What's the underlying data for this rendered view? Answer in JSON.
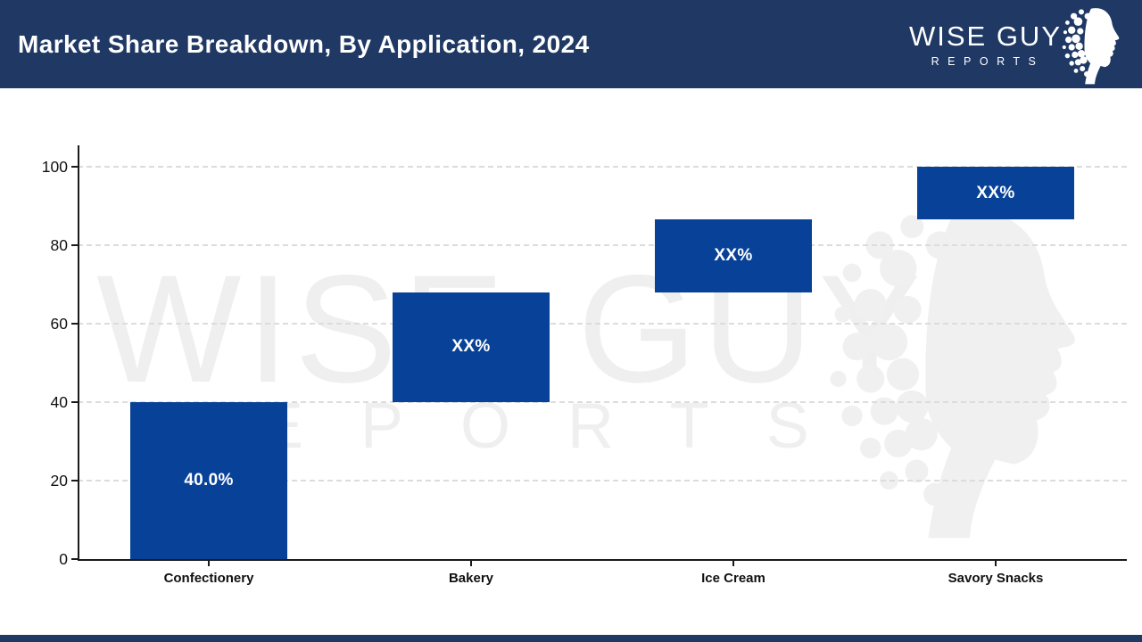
{
  "page": {
    "header": {
      "title": "Market Share Breakdown, By Application, 2024",
      "bg_color": "#1f3864",
      "logo": {
        "line1": "WISE GUY",
        "line2": "REPORTS"
      }
    },
    "watermark": {
      "line1": "WISE GUY",
      "line2": "REPORTS"
    },
    "footer": {
      "bg_color": "#1f3864"
    }
  },
  "chart_data": {
    "type": "bar",
    "subtype": "waterfall",
    "title": "Market Share Breakdown, By Application, 2024",
    "categories": [
      "Confectionery",
      "Bakery",
      "Ice Cream",
      "Savory Snacks"
    ],
    "segments": [
      {
        "category": "Confectionery",
        "start": 0,
        "end": 40,
        "value": 40,
        "label": "40.0%"
      },
      {
        "category": "Bakery",
        "start": 40,
        "end": 68,
        "value": 28,
        "label": "XX%"
      },
      {
        "category": "Ice Cream",
        "start": 68,
        "end": 86.5,
        "value": 18.5,
        "label": "XX%"
      },
      {
        "category": "Savory Snacks",
        "start": 86.5,
        "end": 100,
        "value": 13.5,
        "label": "XX%"
      }
    ],
    "yticks": [
      0,
      20,
      40,
      60,
      80,
      100
    ],
    "ylim": [
      0,
      100
    ],
    "xlabel": "",
    "ylabel": "",
    "grid": "horizontal-dashed",
    "legend": "none",
    "bar_color": "#084298",
    "bar_label_color": "#ffffff",
    "axis_color": "#1a1a1a",
    "gridline_color": "#dcdcdc"
  }
}
